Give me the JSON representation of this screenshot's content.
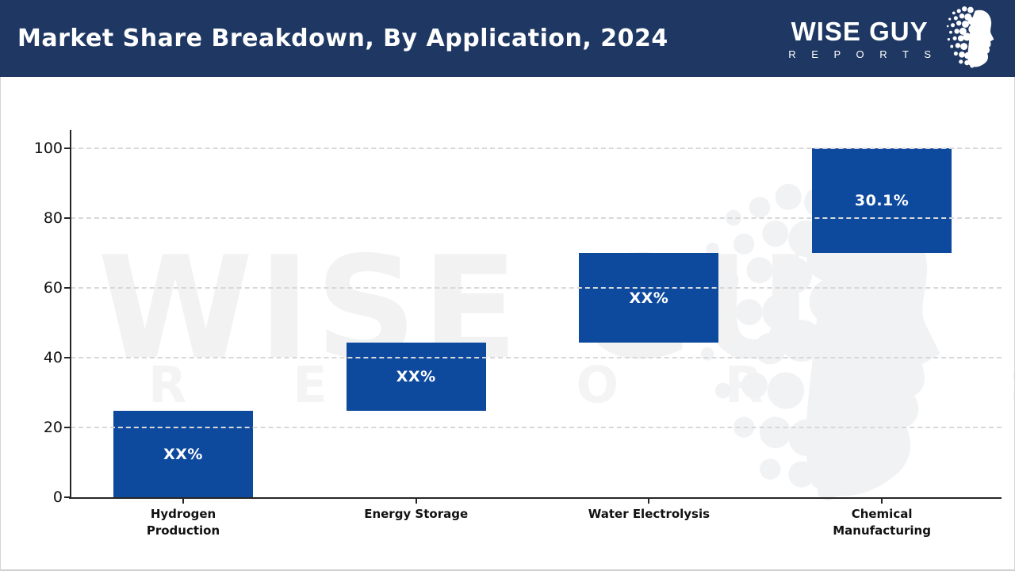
{
  "header": {
    "title": "Market Share Breakdown, By Application, 2024",
    "logo": {
      "name": "WISE GUY",
      "sub": "R E P O R T S"
    }
  },
  "watermark": {
    "line1": "WISE GUY",
    "line2": "R E P O R T S"
  },
  "chart_data": {
    "type": "bar",
    "subtype": "floating-segment-waterfall",
    "title": "Market Share Breakdown, By Application, 2024",
    "xlabel": "",
    "ylabel": "",
    "categories": [
      "Hydrogen Production",
      "Energy Storage",
      "Water Electrolysis",
      "Chemical Manufacturing"
    ],
    "category_lines": [
      [
        "Hydrogen",
        "Production"
      ],
      [
        "Energy Storage"
      ],
      [
        "Water Electrolysis"
      ],
      [
        "Chemical",
        "Manufacturing"
      ]
    ],
    "segments": [
      {
        "category": "Hydrogen Production",
        "start": 0,
        "end": 24.7,
        "label": "XX%"
      },
      {
        "category": "Energy Storage",
        "start": 24.7,
        "end": 44.3,
        "label": "XX%"
      },
      {
        "category": "Water Electrolysis",
        "start": 44.3,
        "end": 69.9,
        "label": "XX%"
      },
      {
        "category": "Chemical Manufacturing",
        "start": 69.9,
        "end": 100,
        "label": "30.1%",
        "value": 30.1
      }
    ],
    "yticks": [
      0,
      20,
      40,
      60,
      80,
      100
    ],
    "ylim": [
      0,
      100
    ],
    "grid": "horizontal-dashed-over-bars",
    "legend": "none"
  },
  "colors": {
    "header_bg": "#1f3863",
    "bar": "#0d4a9e",
    "bar_label": "#ffffff",
    "axis": "#262626",
    "grid": "#d8d8d8",
    "tick_label": "#111111",
    "watermark_text": "#f2f2f2",
    "watermark_graphic": "#f1f2f4",
    "page_bg": "#ffffff"
  }
}
